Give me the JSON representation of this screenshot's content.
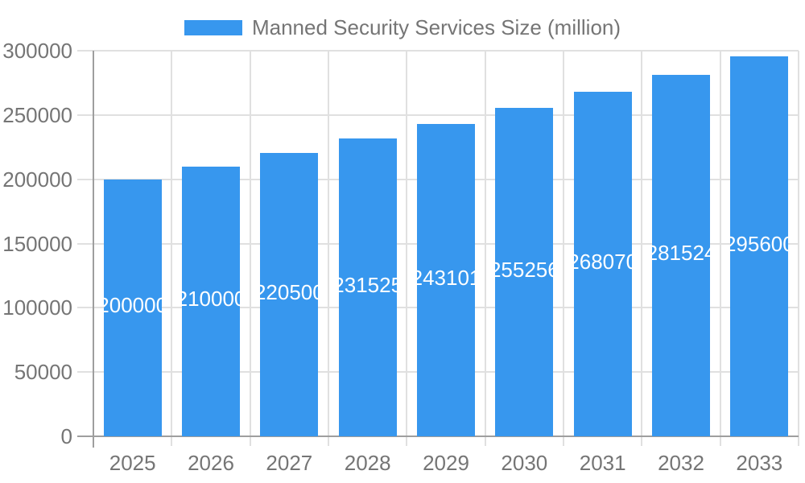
{
  "legend": {
    "label": "Manned Security Services Size (million)",
    "swatch_color": "#3797ee"
  },
  "chart_data": {
    "type": "bar",
    "title": "",
    "categories": [
      "2025",
      "2026",
      "2027",
      "2028",
      "2029",
      "2030",
      "2031",
      "2032",
      "2033"
    ],
    "series": [
      {
        "name": "Manned Security Services Size (million)",
        "values": [
          200000,
          210000,
          220500,
          231525,
          243101,
          255256,
          268070,
          281524,
          295600
        ]
      }
    ],
    "value_labels": [
      "200000",
      "210000",
      "220500",
      "231525",
      "243101",
      "255256",
      "268070",
      "281524",
      "295600"
    ],
    "xlabel": "",
    "ylabel": "",
    "ylim": [
      0,
      300000
    ],
    "yticks": [
      0,
      50000,
      100000,
      150000,
      200000,
      250000,
      300000
    ],
    "ytick_labels": [
      "0",
      "50000",
      "100000",
      "150000",
      "200000",
      "250000",
      "300000"
    ],
    "grid": true,
    "legend_position": "top-center",
    "colors": {
      "bar": "#3797ee",
      "axis_text": "#757575",
      "gridline": "#e0e0e0",
      "axis_line": "#9e9e9e",
      "value_text": "#ffffff",
      "background": "#ffffff"
    }
  }
}
